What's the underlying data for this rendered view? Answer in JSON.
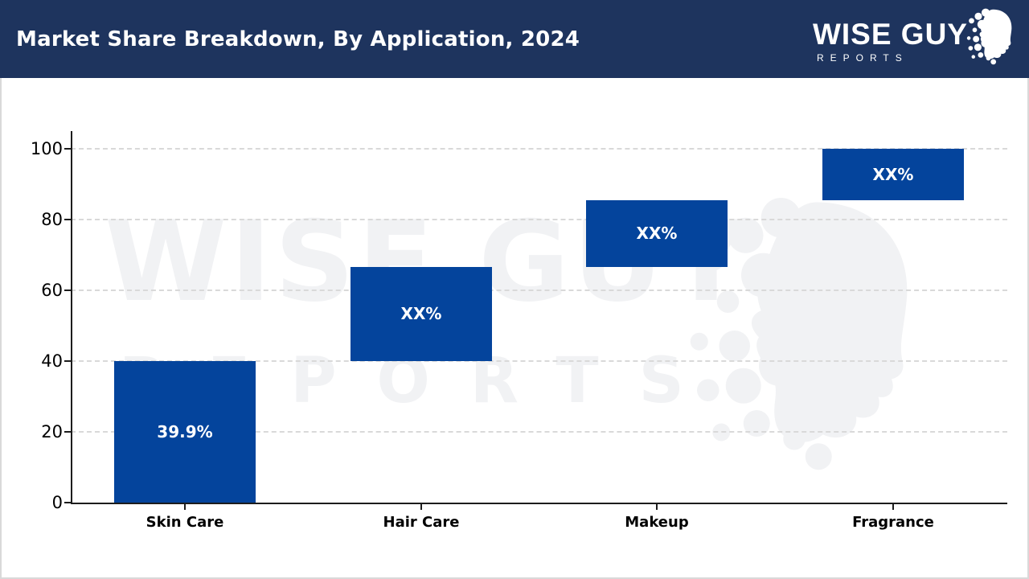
{
  "header": {
    "title": "Market Share Breakdown, By Application, 2024",
    "logo": {
      "line1": "WISE GUY",
      "line2": "REPORTS"
    }
  },
  "watermark": {
    "line1": "WISE GUY",
    "line2": "REPORTS"
  },
  "colors": {
    "header_bg": "#1e345e",
    "bar": "#04449c",
    "grid": "#d9d9d9",
    "axis": "#1c1c1c",
    "watermark": "#f1f2f4",
    "title_text": "#ffffff",
    "bar_label_text": "#ffffff"
  },
  "chart_data": {
    "type": "bar",
    "subtype": "waterfall",
    "title": "Market Share Breakdown, By Application, 2024",
    "categories": [
      "Skin Care",
      "Hair Care",
      "Makeup",
      "Fragrance"
    ],
    "segments": [
      {
        "category": "Skin Care",
        "start": 0,
        "end": 39.9,
        "label": "39.9%"
      },
      {
        "category": "Hair Care",
        "start": 39.9,
        "end": 66.7,
        "label": "XX%"
      },
      {
        "category": "Makeup",
        "start": 66.7,
        "end": 85.4,
        "label": "XX%"
      },
      {
        "category": "Fragrance",
        "start": 85.4,
        "end": 100,
        "label": "XX%"
      }
    ],
    "yticks": [
      0,
      20,
      40,
      60,
      80,
      100
    ],
    "ylim": [
      0,
      105
    ],
    "xlabel": "",
    "ylabel": "",
    "grid": "horizontal-dashed",
    "legend": "none"
  }
}
